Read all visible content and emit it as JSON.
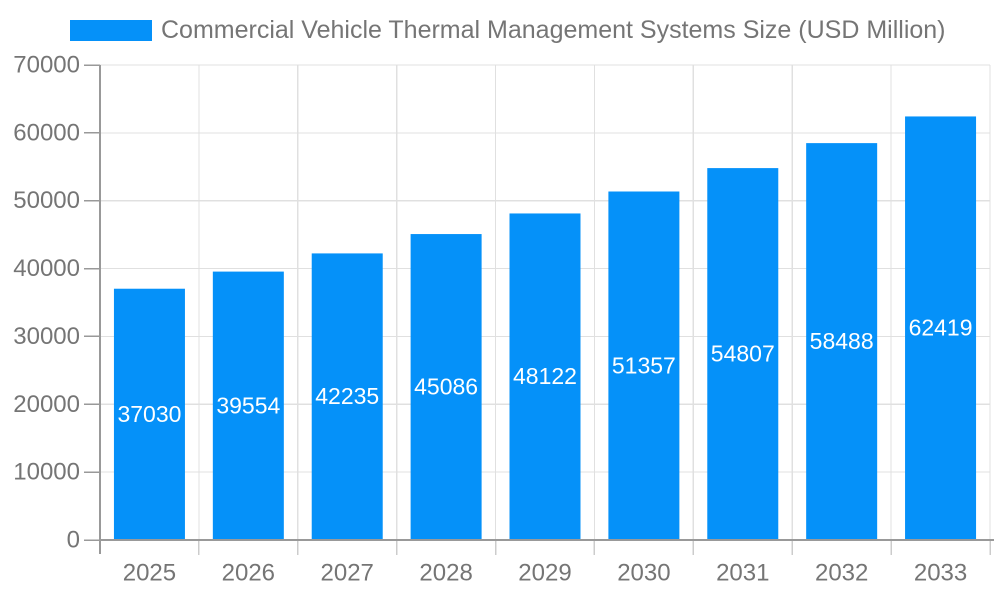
{
  "legend": {
    "position": "top-left"
  },
  "chart_data": {
    "type": "bar",
    "title": "Commercial Vehicle Thermal Management Systems Size (USD Million)",
    "categories": [
      "2025",
      "2026",
      "2027",
      "2028",
      "2029",
      "2030",
      "2031",
      "2032",
      "2033"
    ],
    "values": [
      37030,
      39554,
      42235,
      45086,
      48122,
      51357,
      54807,
      58488,
      62419
    ],
    "value_labels": [
      "37030",
      "39554",
      "42235",
      "45086",
      "48122",
      "51357",
      "54807",
      "58488",
      "62419"
    ],
    "xlabel": "",
    "ylabel": "",
    "ylim": [
      0,
      70000
    ],
    "ytick_values": [
      0,
      10000,
      20000,
      30000,
      40000,
      50000,
      60000,
      70000
    ],
    "ytick_labels": [
      "0",
      "10000",
      "20000",
      "30000",
      "40000",
      "50000",
      "60000",
      "70000"
    ],
    "grid": true,
    "legend_position": "top",
    "colors": {
      "bar": "#0591f9",
      "bar_value_text": "#ffffff",
      "axis_text": "#757575",
      "axis_line": "#999999",
      "gridline": "#e0e0e0",
      "category_tick": "#cccccc",
      "background": "#ffffff"
    }
  }
}
